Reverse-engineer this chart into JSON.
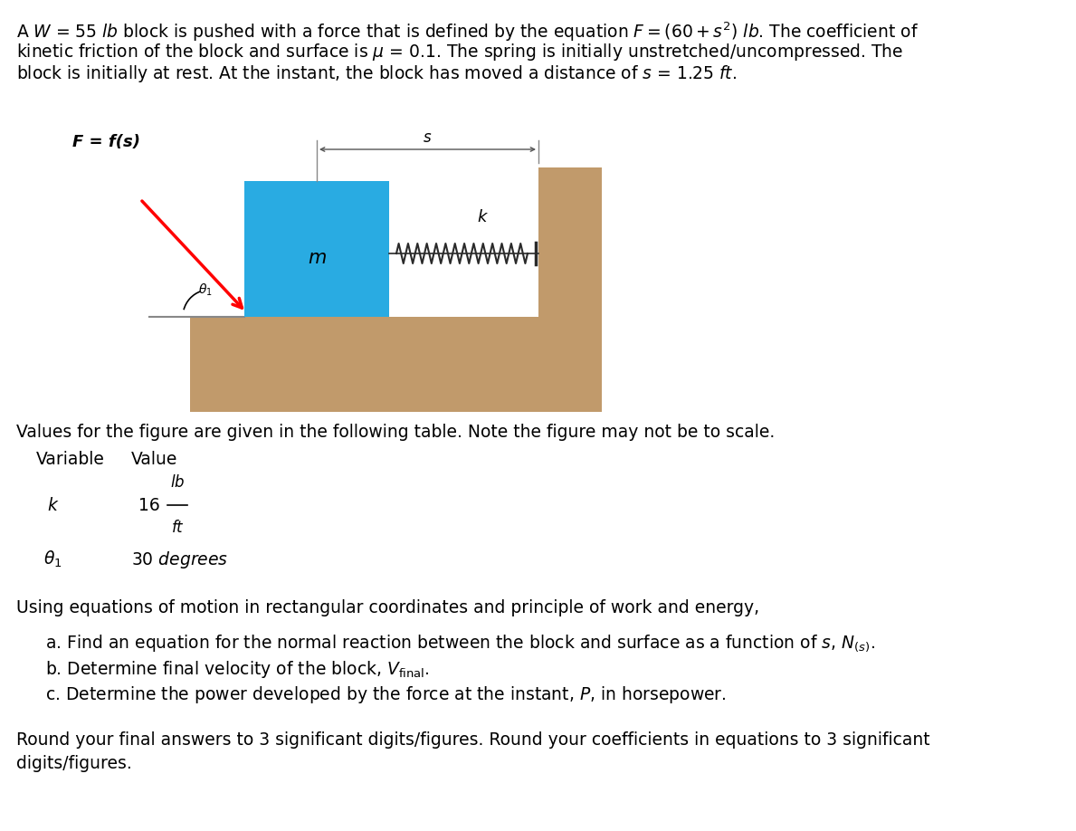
{
  "bg_color": "#ffffff",
  "text_color": "#000000",
  "line1": "A $W$ = 55 $\\it{lb}$ block is pushed with a force that is defined by the equation $F = \\left(60 + s^2\\right)$ $\\it{lb}$. The coefficient of",
  "line2": "kinetic friction of the block and surface is $\\mu$ = 0.1. The spring is initially unstretched/uncompressed. The",
  "line3": "block is initially at rest. At the instant, the block has moved a distance of $s$ = 1.25 $\\it{ft}$.",
  "block_color": "#29ABE2",
  "ground_color": "#C19A6B",
  "wall_color": "#C19A6B",
  "arrow_color": "#FF0000",
  "spring_color": "#2a2a2a",
  "vals_text": "Values for the figure are given in the following table. Note the figure may not be to scale.",
  "var_header": "Variable",
  "val_header": "Value",
  "using_text": "Using equations of motion in rectangular coordinates and principle of work and energy,",
  "part_a": "a. Find an equation for the normal reaction between the block and surface as a function of $s$, $N_{(s)}$.",
  "part_b": "b. Determine final velocity of the block, $V_{\\mathrm{final}}$.",
  "part_c": "c. Determine the power developed by the force at the instant, $P$, in horsepower.",
  "round1": "Round your final answers to 3 significant digits/figures. Round your coefficients in equations to 3 significant",
  "round2": "digits/figures."
}
